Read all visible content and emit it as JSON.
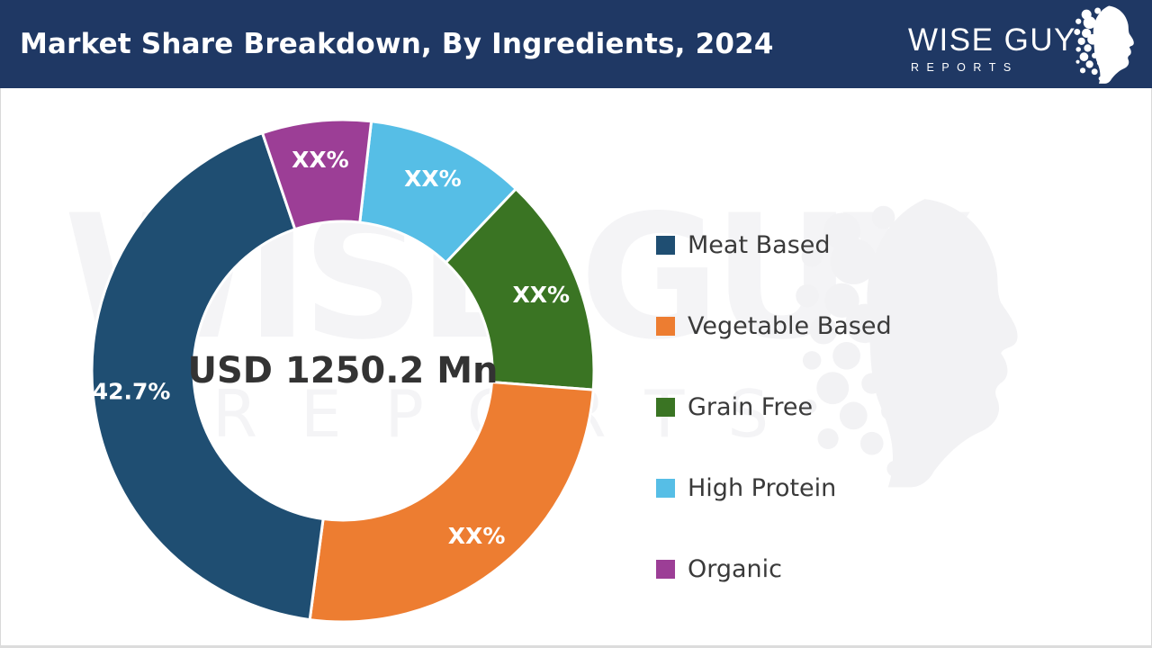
{
  "header": {
    "title": "Market Share Breakdown, By Ingredients, 2024"
  },
  "brand": {
    "name": "WISE GUY",
    "tagline": "REPORTS"
  },
  "watermark": {
    "line1": "WISE GUY",
    "line2": "REPORTS"
  },
  "chart_data": {
    "type": "pie",
    "subtype": "donut",
    "title": "Market Share Breakdown, By Ingredients, 2024",
    "center_label": "USD 1250.2 Mn",
    "start_angle_deg": 6.5,
    "direction": "clockwise",
    "inner_radius_ratio": 0.595,
    "series": [
      {
        "name": "High Protein",
        "value_pct": 10.3,
        "label": "XX%",
        "color": "#56BEE6"
      },
      {
        "name": "Grain Free",
        "value_pct": 14.1,
        "label": "XX%",
        "color": "#3A7423"
      },
      {
        "name": "Vegetable Based",
        "value_pct": 25.9,
        "label": "XX%",
        "color": "#ED7D31"
      },
      {
        "name": "Meat Based",
        "value_pct": 42.7,
        "label": "42.7%",
        "color": "#1F4E72"
      },
      {
        "name": "Organic",
        "value_pct": 7.0,
        "label": "XX%",
        "color": "#9C3E96"
      }
    ],
    "legend": {
      "position": "right",
      "items": [
        {
          "label": "Meat Based",
          "color": "#1F4E72"
        },
        {
          "label": "Vegetable Based",
          "color": "#ED7D31"
        },
        {
          "label": "Grain Free",
          "color": "#3A7423"
        },
        {
          "label": "High Protein",
          "color": "#56BEE6"
        },
        {
          "label": "Organic",
          "color": "#9C3E96"
        }
      ]
    }
  },
  "colors": {
    "header_bg": "#1F3864",
    "title_text": "#FFFFFF",
    "center_text": "#333333",
    "legend_text": "#3A3A3A",
    "slice_label_text": "#FFFFFF",
    "watermark": "#F4F4F6",
    "border": "#D9D9D9"
  }
}
